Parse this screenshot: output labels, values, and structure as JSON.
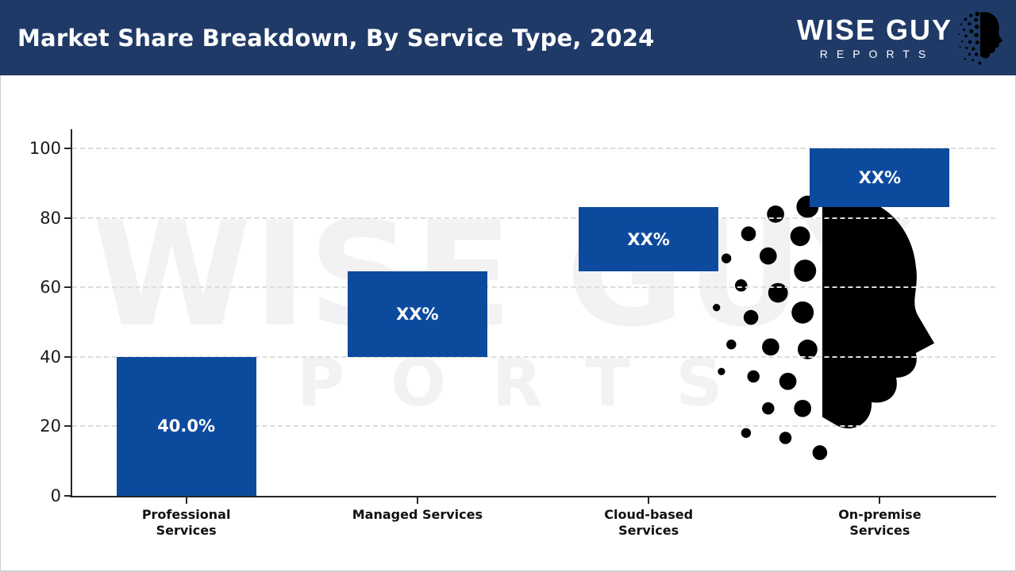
{
  "header": {
    "title": "Market Share Breakdown, By Service Type, 2024",
    "bg_color": "#203a68",
    "logo": {
      "line1": "WISE GUY",
      "line2": "REPORTS"
    }
  },
  "watermark": {
    "line1": "WISE GUY",
    "line2": "REPORTS"
  },
  "chart_data": {
    "type": "bar",
    "subtype": "waterfall",
    "title": "Market Share Breakdown, By Service Type, 2024",
    "categories": [
      "Professional\nServices",
      "Managed Services",
      "Cloud-based\nServices",
      "On-premise\nServices"
    ],
    "segments": [
      {
        "category": "Professional Services",
        "start": 0,
        "end": 40,
        "value": 40,
        "label": "40.0%"
      },
      {
        "category": "Managed Services",
        "start": 40,
        "end": 64.5,
        "value": 24.5,
        "label": "XX%"
      },
      {
        "category": "Cloud-based Services",
        "start": 64.5,
        "end": 83,
        "value": 18.5,
        "label": "XX%"
      },
      {
        "category": "On-premise Services",
        "start": 83,
        "end": 100,
        "value": 17,
        "label": "XX%"
      }
    ],
    "yticks": [
      0,
      20,
      40,
      60,
      80,
      100
    ],
    "ylim": [
      0,
      105
    ],
    "xlabel": "",
    "ylabel": "",
    "grid": "horizontal dashed",
    "legend": "none",
    "bar_color": "#0c4a9e",
    "bar_label_color": "#ffffff",
    "axis_color": "#262626",
    "grid_color": "#dcdcdc"
  }
}
